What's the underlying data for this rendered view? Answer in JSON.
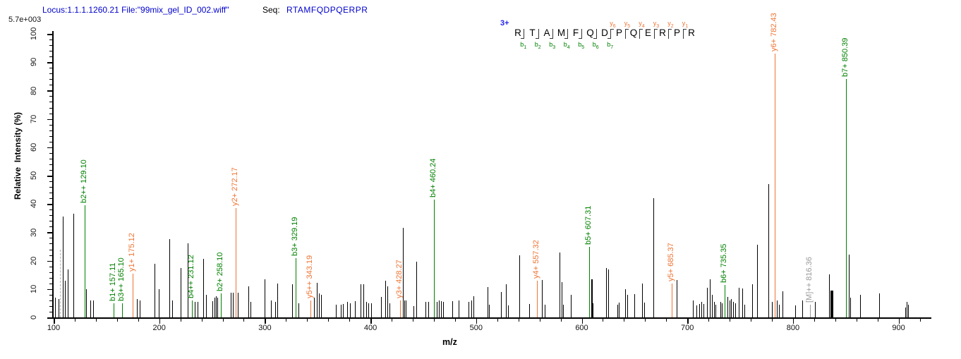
{
  "header": {
    "locus_file": "Locus:1.1.1.1260.21 File:\"99mix_gel_ID_002.wiff\"",
    "seq_label": "Seq:",
    "seq_value": "RTAMFQDPQERPR"
  },
  "scale_note": "5.7e+003",
  "y_axis_label": "Relative  Intensity (%)",
  "x_axis_label": "m/z",
  "sequence_annotation": {
    "charge": "3+",
    "residues": [
      "R",
      "T",
      "A",
      "M",
      "F",
      "Q",
      "D",
      "P",
      "Q",
      "E",
      "R",
      "P",
      "R"
    ],
    "b_ions": [
      "b1",
      "b2",
      "b3",
      "b4",
      "b5",
      "b6",
      "b7"
    ],
    "y_ions": [
      "y6",
      "y5",
      "y4",
      "y3",
      "y2",
      "y1"
    ]
  },
  "colors": {
    "b": "#008000",
    "y": "#ee7433",
    "M": "#9a9a9a",
    "peak": "#000000",
    "dashed": "#b5b5b5",
    "header_blue": "#0000cc"
  },
  "chart_data": {
    "type": "bar",
    "subtype": "ms2-centroid-spectrum",
    "title": "",
    "xlabel": "m/z",
    "ylabel": "Relative  Intensity (%)",
    "max_intensity_absolute": "5.7e+003",
    "x_range": [
      100,
      931
    ],
    "ylim": [
      0,
      100
    ],
    "x_major_ticks": [
      100,
      200,
      300,
      400,
      500,
      600,
      700,
      800,
      900
    ],
    "x_minor_step": 20,
    "y_major_ticks": [
      0,
      10,
      20,
      30,
      40,
      50,
      60,
      70,
      80,
      90,
      100
    ],
    "y_minor_step": 2,
    "grid": "off",
    "legend": "none",
    "peaks": [
      {
        "mz": 101.3,
        "i": 7
      },
      {
        "mz": 104.8,
        "i": 6.5
      },
      {
        "mz": 105.8,
        "i": 24,
        "t": "dashed"
      },
      {
        "mz": 109,
        "i": 35.5
      },
      {
        "mz": 110.7,
        "i": 13
      },
      {
        "mz": 113.5,
        "i": 17
      },
      {
        "mz": 119,
        "i": 36.5
      },
      {
        "mz": 129.1,
        "i": 39.5,
        "t": "b",
        "label": "b2++ 129.10"
      },
      {
        "mz": 131,
        "i": 10
      },
      {
        "mz": 135,
        "i": 6
      },
      {
        "mz": 137.5,
        "i": 6
      },
      {
        "mz": 157.11,
        "i": 5,
        "t": "b",
        "label": "b1+ 157.11"
      },
      {
        "mz": 165.1,
        "i": 5,
        "t": "b",
        "label": "b3++ 165.10"
      },
      {
        "mz": 175.12,
        "i": 15.5,
        "t": "y",
        "label": "y1+ 175.12"
      },
      {
        "mz": 179,
        "i": 6.5
      },
      {
        "mz": 181.5,
        "i": 6
      },
      {
        "mz": 195.7,
        "i": 19
      },
      {
        "mz": 199.5,
        "i": 10
      },
      {
        "mz": 209.5,
        "i": 27.5
      },
      {
        "mz": 212,
        "i": 6
      },
      {
        "mz": 220.5,
        "i": 17.5
      },
      {
        "mz": 227,
        "i": 26
      },
      {
        "mz": 231.12,
        "i": 6,
        "t": "b",
        "label": "b4++ 231.12"
      },
      {
        "mz": 233.5,
        "i": 5.5
      },
      {
        "mz": 236.5,
        "i": 5.5
      },
      {
        "mz": 241.3,
        "i": 20.7
      },
      {
        "mz": 244,
        "i": 8
      },
      {
        "mz": 250.5,
        "i": 5.7
      },
      {
        "mz": 252.3,
        "i": 7
      },
      {
        "mz": 253.5,
        "i": 7.4
      },
      {
        "mz": 254.8,
        "i": 7
      },
      {
        "mz": 258.1,
        "i": 8.5,
        "t": "b",
        "label": "b2+ 258.10"
      },
      {
        "mz": 268,
        "i": 8.7
      },
      {
        "mz": 269.5,
        "i": 8.7
      },
      {
        "mz": 272.17,
        "i": 38.5,
        "t": "y",
        "label": "y2+ 272.17"
      },
      {
        "mz": 274.5,
        "i": 8.7
      },
      {
        "mz": 284.2,
        "i": 11
      },
      {
        "mz": 286.3,
        "i": 5.5
      },
      {
        "mz": 300,
        "i": 13.4
      },
      {
        "mz": 305.7,
        "i": 6
      },
      {
        "mz": 309.5,
        "i": 5.5
      },
      {
        "mz": 312,
        "i": 12
      },
      {
        "mz": 325.8,
        "i": 11.6
      },
      {
        "mz": 329.19,
        "i": 21,
        "t": "b",
        "label": "b3+ 329.19"
      },
      {
        "mz": 332,
        "i": 5
      },
      {
        "mz": 343.19,
        "i": 6,
        "t": "y",
        "label": "y5++ 343.19"
      },
      {
        "mz": 346.3,
        "i": 7
      },
      {
        "mz": 349,
        "i": 12.2
      },
      {
        "mz": 351,
        "i": 8.4
      },
      {
        "mz": 353,
        "i": 8
      },
      {
        "mz": 367.3,
        "i": 4.6
      },
      {
        "mz": 371.8,
        "i": 4.5
      },
      {
        "mz": 374.2,
        "i": 4.8
      },
      {
        "mz": 378.2,
        "i": 5.5
      },
      {
        "mz": 380.5,
        "i": 5
      },
      {
        "mz": 385.2,
        "i": 5.8
      },
      {
        "mz": 390.8,
        "i": 11.8
      },
      {
        "mz": 393,
        "i": 11.8
      },
      {
        "mz": 396,
        "i": 5.5
      },
      {
        "mz": 398,
        "i": 5
      },
      {
        "mz": 400.8,
        "i": 5
      },
      {
        "mz": 410.2,
        "i": 7.2
      },
      {
        "mz": 414.2,
        "i": 13
      },
      {
        "mz": 415.7,
        "i": 11
      },
      {
        "mz": 418.2,
        "i": 5
      },
      {
        "mz": 428.27,
        "i": 6,
        "t": "y",
        "label": "y3+ 428.27"
      },
      {
        "mz": 430.5,
        "i": 31.7
      },
      {
        "mz": 432,
        "i": 6
      },
      {
        "mz": 433.5,
        "i": 6
      },
      {
        "mz": 441,
        "i": 4
      },
      {
        "mz": 443.3,
        "i": 19.7
      },
      {
        "mz": 452.3,
        "i": 5.5
      },
      {
        "mz": 454.5,
        "i": 5.5
      },
      {
        "mz": 460.24,
        "i": 41.5,
        "t": "b",
        "label": "b4+ 460.24"
      },
      {
        "mz": 463,
        "i": 5.4
      },
      {
        "mz": 465,
        "i": 6
      },
      {
        "mz": 467,
        "i": 5.8
      },
      {
        "mz": 468.7,
        "i": 5.5
      },
      {
        "mz": 477.3,
        "i": 5.8
      },
      {
        "mz": 483.3,
        "i": 6
      },
      {
        "mz": 493,
        "i": 5.5
      },
      {
        "mz": 495.3,
        "i": 6
      },
      {
        "mz": 497.5,
        "i": 7.5
      },
      {
        "mz": 510.8,
        "i": 10.8
      },
      {
        "mz": 512.3,
        "i": 4.5
      },
      {
        "mz": 523.5,
        "i": 9
      },
      {
        "mz": 528.3,
        "i": 11.8
      },
      {
        "mz": 530.5,
        "i": 4.3
      },
      {
        "mz": 541,
        "i": 22
      },
      {
        "mz": 550,
        "i": 4.7
      },
      {
        "mz": 557.32,
        "i": 13,
        "t": "y",
        "label": "y4+ 557.32"
      },
      {
        "mz": 562.3,
        "i": 13.3
      },
      {
        "mz": 565,
        "i": 4.6
      },
      {
        "mz": 579.2,
        "i": 23
      },
      {
        "mz": 580.7,
        "i": 12.5
      },
      {
        "mz": 582.2,
        "i": 4.4
      },
      {
        "mz": 589.7,
        "i": 8
      },
      {
        "mz": 607.31,
        "i": 25,
        "t": "b",
        "label": "b5+ 607.31"
      },
      {
        "mz": 608.8,
        "i": 13.4,
        "w": 2
      },
      {
        "mz": 610.5,
        "i": 5
      },
      {
        "mz": 623.3,
        "i": 17.5
      },
      {
        "mz": 624.9,
        "i": 17
      },
      {
        "mz": 633.7,
        "i": 4.6
      },
      {
        "mz": 635,
        "i": 5.1
      },
      {
        "mz": 641.3,
        "i": 10
      },
      {
        "mz": 642.8,
        "i": 8
      },
      {
        "mz": 650,
        "i": 8.2
      },
      {
        "mz": 656.8,
        "i": 12
      },
      {
        "mz": 659,
        "i": 5.1
      },
      {
        "mz": 668,
        "i": 42
      },
      {
        "mz": 685.37,
        "i": 12,
        "t": "y",
        "label": "y5+ 685.37"
      },
      {
        "mz": 690,
        "i": 13.1
      },
      {
        "mz": 705.5,
        "i": 6
      },
      {
        "mz": 708.5,
        "i": 4.3
      },
      {
        "mz": 711,
        "i": 4.8
      },
      {
        "mz": 713.5,
        "i": 5.5
      },
      {
        "mz": 715.5,
        "i": 4.8
      },
      {
        "mz": 718.3,
        "i": 10.5
      },
      {
        "mz": 721,
        "i": 13.4
      },
      {
        "mz": 723.3,
        "i": 7.9
      },
      {
        "mz": 725,
        "i": 5.5
      },
      {
        "mz": 726.6,
        "i": 4.5
      },
      {
        "mz": 731.2,
        "i": 5.5
      },
      {
        "mz": 732.8,
        "i": 5
      },
      {
        "mz": 735.35,
        "i": 11.5,
        "t": "b",
        "label": "b6+ 735.35"
      },
      {
        "mz": 738,
        "i": 7.3
      },
      {
        "mz": 739.7,
        "i": 6
      },
      {
        "mz": 741.5,
        "i": 6.5
      },
      {
        "mz": 743.3,
        "i": 5.5
      },
      {
        "mz": 745,
        "i": 5
      },
      {
        "mz": 748.8,
        "i": 10.5
      },
      {
        "mz": 751.9,
        "i": 10.3
      },
      {
        "mz": 753.7,
        "i": 4.4
      },
      {
        "mz": 761.4,
        "i": 11.6
      },
      {
        "mz": 765.9,
        "i": 25.7
      },
      {
        "mz": 776.5,
        "i": 47
      },
      {
        "mz": 780.3,
        "i": 5.5
      },
      {
        "mz": 782.43,
        "i": 93,
        "t": "y",
        "label": "y6+ 782.43"
      },
      {
        "mz": 785,
        "i": 6
      },
      {
        "mz": 787,
        "i": 4.5
      },
      {
        "mz": 790,
        "i": 9.3
      },
      {
        "mz": 802,
        "i": 4.3
      },
      {
        "mz": 808.5,
        "i": 6
      },
      {
        "mz": 816.36,
        "i": 4.5,
        "t": "M",
        "label": "[M]++ 816.36"
      },
      {
        "mz": 821,
        "i": 5.5
      },
      {
        "mz": 834.3,
        "i": 15.1
      },
      {
        "mz": 835.8,
        "i": 9.5,
        "w": 4
      },
      {
        "mz": 850.39,
        "i": 84,
        "t": "b",
        "label": "b7+ 850.39"
      },
      {
        "mz": 852.8,
        "i": 22.2
      },
      {
        "mz": 854.3,
        "i": 7
      },
      {
        "mz": 863.8,
        "i": 8
      },
      {
        "mz": 881.5,
        "i": 8.5
      },
      {
        "mz": 906,
        "i": 3.5
      },
      {
        "mz": 907.5,
        "i": 5.5
      },
      {
        "mz": 909,
        "i": 4.5
      }
    ]
  }
}
